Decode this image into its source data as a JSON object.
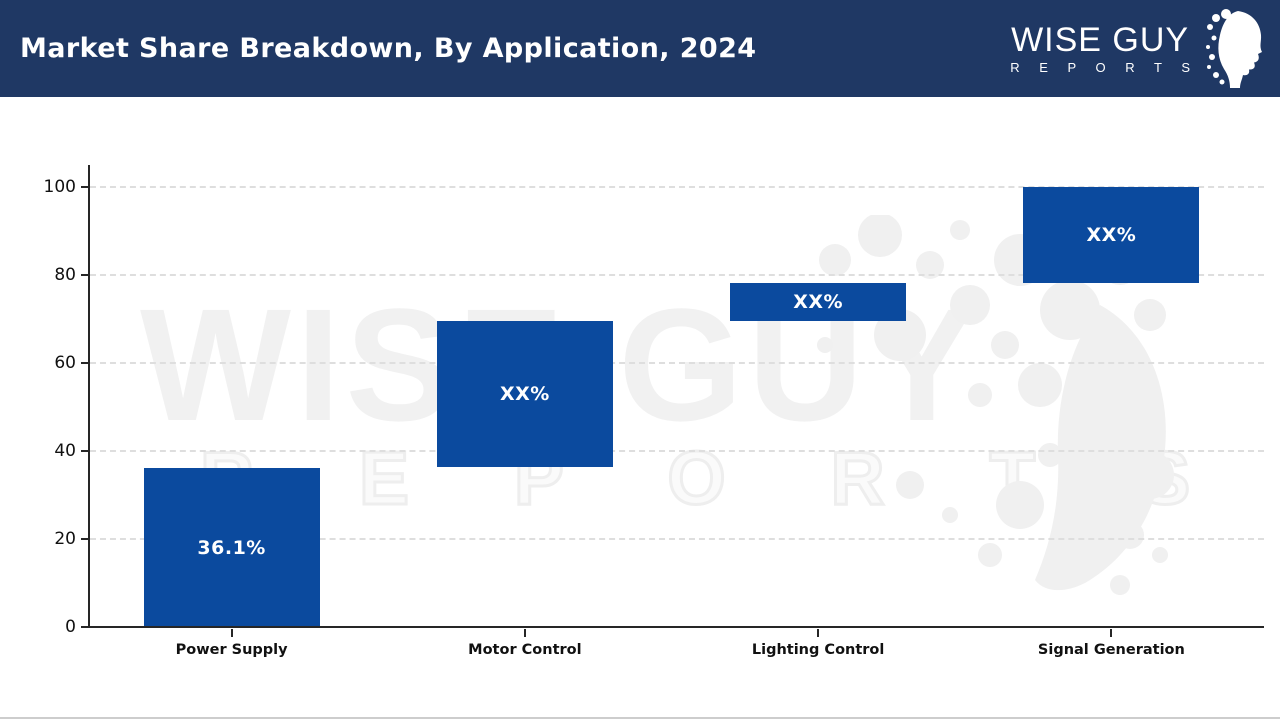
{
  "header": {
    "title": "Market Share Breakdown, By Application, 2024",
    "bg_color": "#1f3864",
    "logo": {
      "line1": "WISE GUY",
      "line2": "R E P O R T S"
    }
  },
  "watermark": {
    "line1": "WISE GUY",
    "line2": "R E P O R T S"
  },
  "chart_data": {
    "type": "bar",
    "subtype": "floating-waterfall",
    "title": "Market Share Breakdown, By Application, 2024",
    "categories": [
      "Power Supply",
      "Motor Control",
      "Lighting Control",
      "Signal Generation"
    ],
    "segments": [
      [
        0,
        36.1
      ],
      [
        36.4,
        69.5
      ],
      [
        69.6,
        78.2
      ],
      [
        78.1,
        100
      ]
    ],
    "bar_labels": [
      "36.1%",
      "XX%",
      "XX%",
      "XX%"
    ],
    "xlabel": "",
    "ylabel": "",
    "ylim": [
      0,
      100
    ],
    "yticks": [
      0,
      20,
      40,
      60,
      80,
      100
    ],
    "grid": "horizontal-dashed",
    "legend": "none",
    "bar_color": "#0b4a9e",
    "bar_label_color": "#ffffff",
    "axis_color": "#262626",
    "gridline_color": "#dedede"
  }
}
